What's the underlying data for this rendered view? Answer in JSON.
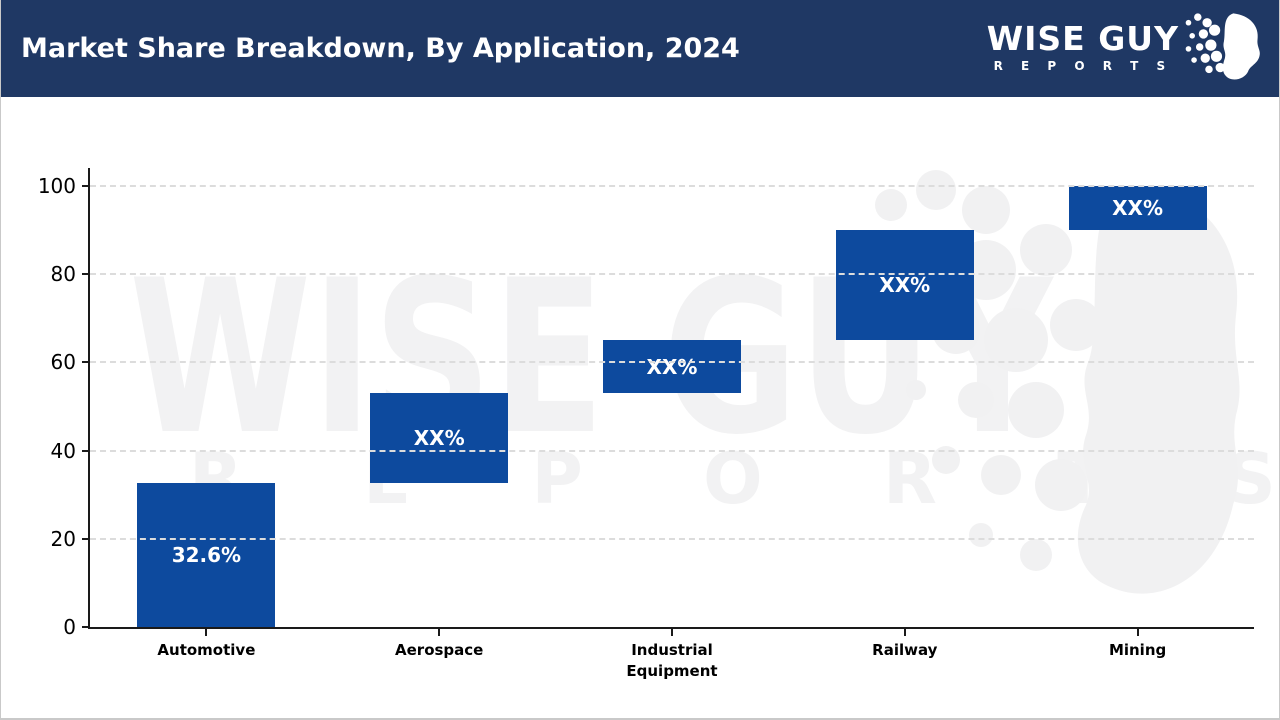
{
  "header": {
    "title": "Market Share Breakdown, By Application, 2024",
    "logo": {
      "name_line": "WISE GUY",
      "reports_line": "R E P O R T S"
    }
  },
  "watermark": {
    "name_line": "WISE GUY",
    "reports_line": "R E P O R T S"
  },
  "colors": {
    "header_bg": "#1f3864",
    "bar": "#0d4a9e",
    "grid": "#dcdcdc",
    "axis": "#1a1a1a",
    "bar_label": "#ffffff",
    "watermark": "#f2f2f3"
  },
  "chart_data": {
    "type": "bar",
    "subtype": "waterfall-floating-segments",
    "title": "Market Share Breakdown, By Application, 2024",
    "categories": [
      "Automotive",
      "Aerospace",
      "Industrial Equipment",
      "Railway",
      "Mining"
    ],
    "bars": [
      {
        "category": "Automotive",
        "start": 0,
        "end": 32.6,
        "label": "32.6%"
      },
      {
        "category": "Aerospace",
        "start": 32.6,
        "end": 53,
        "label": "XX%"
      },
      {
        "category": "Industrial Equipment",
        "start": 53,
        "end": 65,
        "label": "XX%"
      },
      {
        "category": "Railway",
        "start": 65,
        "end": 90,
        "label": "XX%"
      },
      {
        "category": "Mining",
        "start": 90,
        "end": 100,
        "label": "XX%"
      }
    ],
    "ylim": [
      0,
      100
    ],
    "yticks": [
      0,
      20,
      40,
      60,
      80,
      100
    ],
    "xlabel": "",
    "ylabel": "",
    "grid": "horizontal-dashed",
    "legend": "none",
    "bar_color": "#0d4a9e"
  }
}
